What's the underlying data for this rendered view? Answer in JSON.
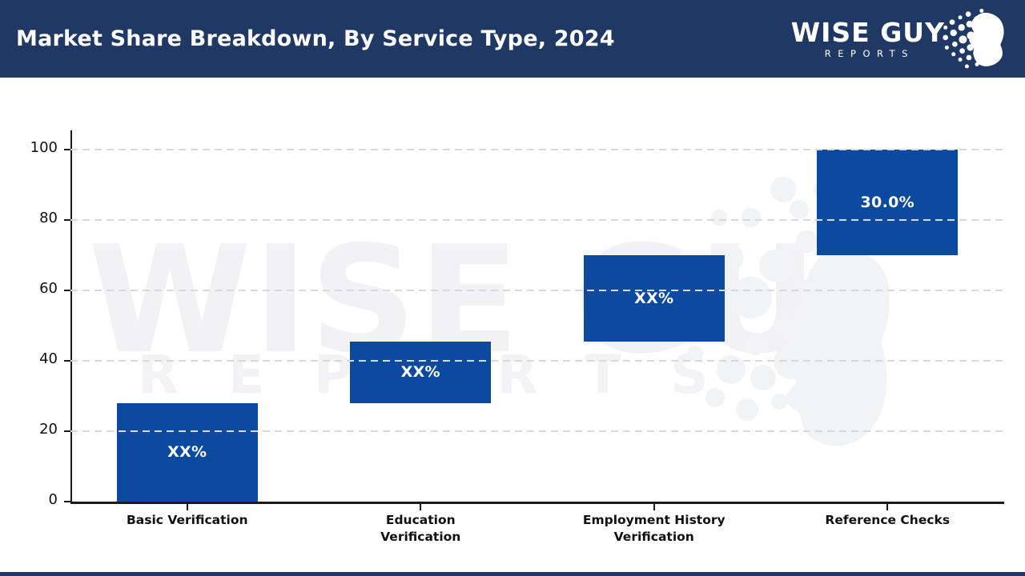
{
  "header": {
    "title": "Market Share Breakdown, By Service Type, 2024",
    "logo": {
      "name": "WISE GUY",
      "sub": "REPORTS"
    }
  },
  "watermark": {
    "text": "WISE GU",
    "sub": "REPORTS"
  },
  "chart_data": {
    "type": "bar",
    "subtype": "waterfall",
    "title": "Market Share Breakdown, By Service Type, 2024",
    "categories": [
      "Basic Verification",
      "Education\nVerification",
      "Employment History\nVerification",
      "Reference Checks"
    ],
    "segments": [
      {
        "category": "Basic Verification",
        "start": 0,
        "end": 28,
        "height": 28,
        "label": "XX%"
      },
      {
        "category": "Education Verification",
        "start": 28,
        "end": 45.5,
        "height": 17.5,
        "label": "XX%"
      },
      {
        "category": "Employment History Verification",
        "start": 45.5,
        "end": 70,
        "height": 24.5,
        "label": "XX%"
      },
      {
        "category": "Reference Checks",
        "start": 70,
        "end": 100,
        "height": 30,
        "label": "30.0%"
      }
    ],
    "yticks": [
      0,
      20,
      40,
      60,
      80,
      100
    ],
    "ylim": [
      0,
      100
    ],
    "xlabel": "",
    "ylabel": "",
    "grid": "dashed-horizontal, drawn over bars",
    "legend": "none",
    "bar_color": "#0b4a9f"
  },
  "colors": {
    "header_bg": "#1f3864",
    "footer_strip": "#1f3864",
    "bar": "#0b4a9f",
    "gridline": "#d9d9d9",
    "axis": "#1a1a1a",
    "watermark": "#f2f2f4",
    "label_on_bar": "#ffffff"
  }
}
